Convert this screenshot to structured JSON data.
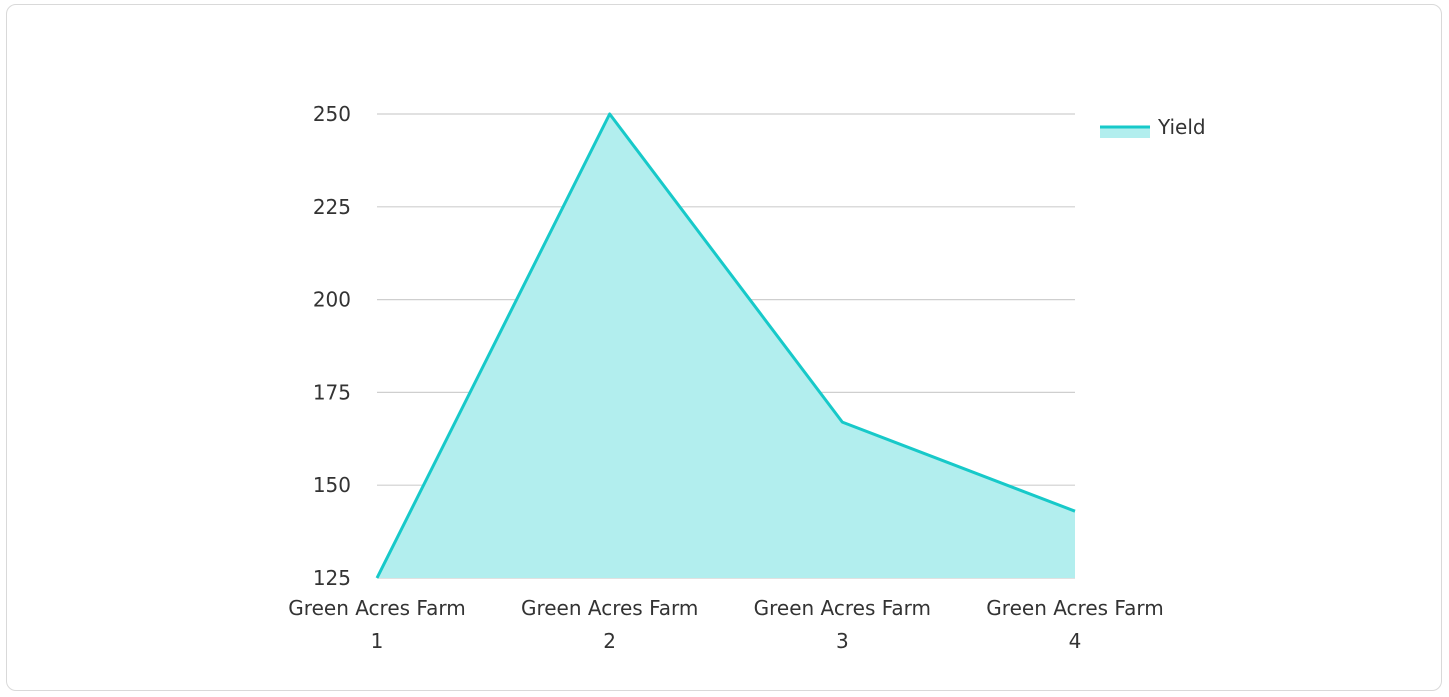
{
  "chart_data": {
    "type": "area",
    "title": "",
    "xlabel": "",
    "ylabel": "",
    "categories": [
      [
        "Green Acres Farm",
        "1"
      ],
      [
        "Green Acres Farm",
        "2"
      ],
      [
        "Green Acres Farm",
        "3"
      ],
      [
        "Green Acres Farm",
        "4"
      ]
    ],
    "series": [
      {
        "name": "Yield",
        "values": [
          125,
          250,
          167,
          143
        ],
        "line_color": "#17c9c9",
        "fill_color": "#b2eeee"
      }
    ],
    "ylim": [
      125,
      250
    ],
    "yticks": [
      "125",
      "150",
      "175",
      "200",
      "225",
      "250"
    ],
    "grid": true,
    "legend_position": "top-right"
  }
}
